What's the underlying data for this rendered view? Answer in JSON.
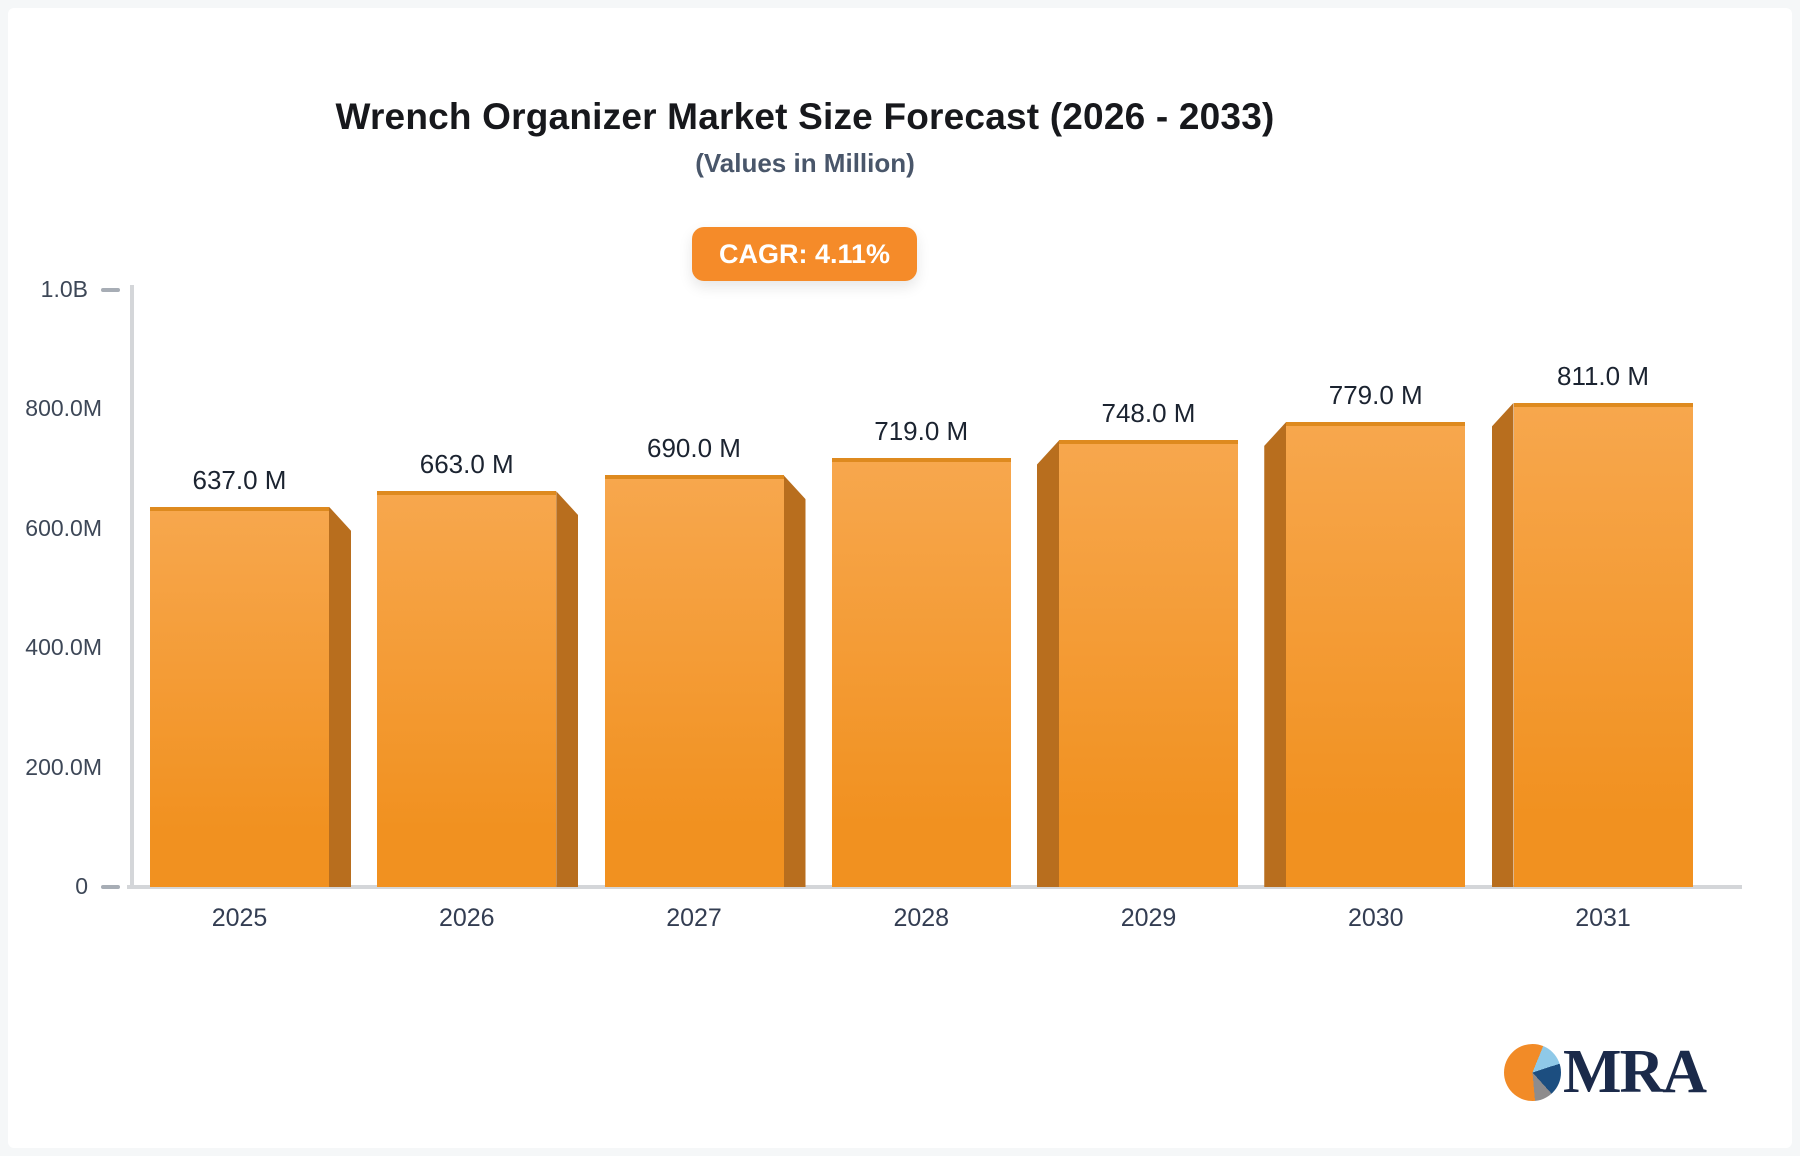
{
  "page": {
    "title": "Wrench Organizer Market Size Forecast (2026 - 2033)",
    "subtitle": "(Values in Million)",
    "cagr_label": "CAGR: 4.11%"
  },
  "branding": {
    "logo_icon": "pie-chart-icon",
    "logo_text": "MRA"
  },
  "colors": {
    "badge_bg": "#F58B29",
    "bar_face_top": "#F7A74D",
    "bar_face_bottom": "#F19120",
    "bar_top_edge": "#DE8A1F",
    "bar_side": "#B86E1E",
    "axis_line": "#D4D6D9",
    "logo_navy": "#1B2A4A",
    "logo_orange": "#F28B27",
    "logo_lightblue": "#8FC9E8",
    "logo_blue": "#1C4E80",
    "logo_gray": "#8E8C8D"
  },
  "chart_data": {
    "type": "bar",
    "title": "Wrench Organizer Market Size Forecast (2026 - 2033)",
    "subtitle": "(Values in Million)",
    "cagr": "4.11%",
    "categories": [
      "2025",
      "2026",
      "2027",
      "2028",
      "2029",
      "2030",
      "2031"
    ],
    "values": [
      637,
      663,
      690,
      719,
      748,
      779,
      811
    ],
    "value_labels": [
      "637.0 M",
      "663.0 M",
      "690.0 M",
      "719.0 M",
      "748.0 M",
      "779.0 M",
      "811.0 M"
    ],
    "unit": "M",
    "ylim": [
      0,
      1000
    ],
    "y_ticks": [
      {
        "label": "1.0B",
        "value": 1000,
        "dash": true
      },
      {
        "label": "800.0M",
        "value": 800,
        "dash": false
      },
      {
        "label": "600.0M",
        "value": 600,
        "dash": false
      },
      {
        "label": "400.0M",
        "value": 400,
        "dash": false
      },
      {
        "label": "200.0M",
        "value": 200,
        "dash": false
      },
      {
        "label": "0",
        "value": 0,
        "dash": true
      }
    ],
    "grid": false,
    "legend": false,
    "bar_style": "3d-bevel-orange"
  }
}
